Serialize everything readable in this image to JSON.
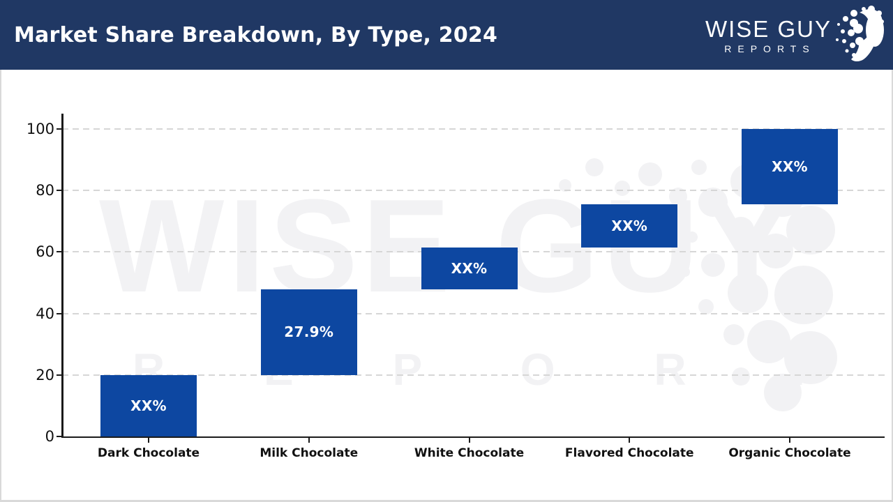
{
  "header": {
    "title": "Market Share Breakdown, By Type, 2024",
    "bg_color": "#203864",
    "logo": {
      "name": "WISE GUY",
      "sub": "REPORTS"
    }
  },
  "watermark": {
    "big": "WISE GUY",
    "small": "R E P O R T S"
  },
  "chart_data": {
    "type": "bar",
    "subtype": "waterfall",
    "title": "Market Share Breakdown, By Type, 2024",
    "categories": [
      "Dark Chocolate",
      "Milk Chocolate",
      "White Chocolate",
      "Flavored Chocolate",
      "Organic Chocolate"
    ],
    "segments": [
      {
        "category": "Dark Chocolate",
        "start": 0,
        "end": 20,
        "value": 20,
        "label": "XX%"
      },
      {
        "category": "Milk Chocolate",
        "start": 20,
        "end": 47.9,
        "value": 27.9,
        "label": "27.9%"
      },
      {
        "category": "White Chocolate",
        "start": 47.9,
        "end": 61.5,
        "value": 13.6,
        "label": "XX%"
      },
      {
        "category": "Flavored Chocolate",
        "start": 61.5,
        "end": 75.5,
        "value": 14,
        "label": "XX%"
      },
      {
        "category": "Organic Chocolate",
        "start": 75.5,
        "end": 100,
        "value": 24.5,
        "label": "XX%"
      }
    ],
    "y_ticks": [
      0,
      20,
      40,
      60,
      80,
      100
    ],
    "ylim": [
      0,
      105
    ],
    "xlabel": "",
    "ylabel": "",
    "grid": "horizontal-dashed",
    "legend": "none",
    "bar_color": "#0d47a1",
    "bar_label_color": "#ffffff"
  }
}
